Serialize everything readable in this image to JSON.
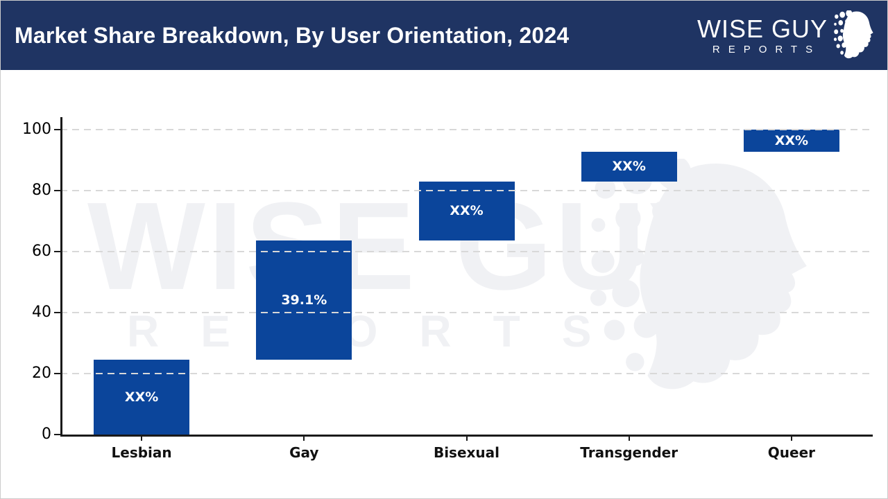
{
  "header": {
    "title": "Market Share Breakdown, By User Orientation, 2024",
    "logo": {
      "wordmark": "WISE GUY",
      "subtext": "REPORTS"
    }
  },
  "watermark": {
    "wordmark": "WISE GUY",
    "subtext": "REPORTS"
  },
  "chart_data": {
    "type": "bar",
    "subtype": "waterfall",
    "title": "Market Share Breakdown, By User Orientation, 2024",
    "xlabel": "",
    "ylabel": "",
    "categories": [
      "Lesbian",
      "Gay",
      "Bisexual",
      "Transgender",
      "Queer"
    ],
    "segments": [
      {
        "category": "Lesbian",
        "start": 0,
        "end": 24.5,
        "label": "XX%"
      },
      {
        "category": "Gay",
        "start": 24.5,
        "end": 63.6,
        "label": "39.1%"
      },
      {
        "category": "Bisexual",
        "start": 63.6,
        "end": 83.0,
        "label": "XX%"
      },
      {
        "category": "Transgender",
        "start": 83.0,
        "end": 92.7,
        "label": "XX%"
      },
      {
        "category": "Queer",
        "start": 92.7,
        "end": 100.0,
        "label": "XX%"
      }
    ],
    "yticks": [
      0,
      20,
      40,
      60,
      80,
      100
    ],
    "ylim": [
      0,
      105
    ],
    "grid": "horizontal-dashed",
    "legend": "none",
    "colors": {
      "bar": "#0b459b",
      "bar_label": "#ffffff",
      "header_bg": "#1f3463",
      "axis": "#1a1a1a",
      "gridline": "#d8d8d8",
      "tick_label": "#111111",
      "watermark": "#f0f1f4"
    }
  }
}
